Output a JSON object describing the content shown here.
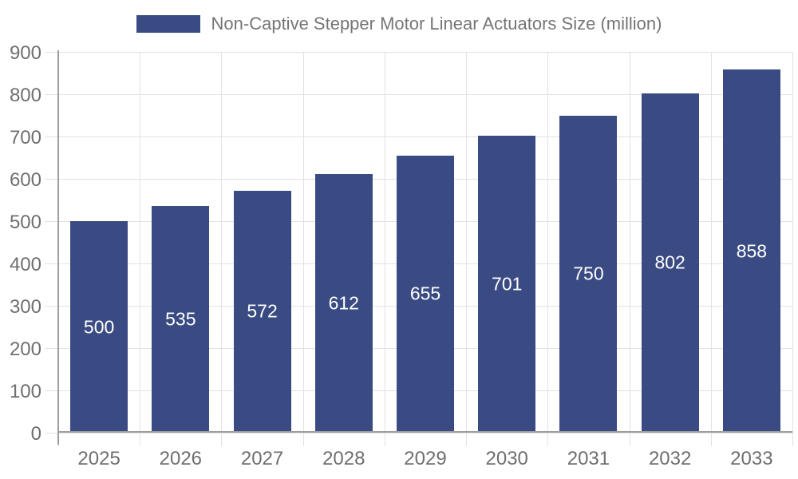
{
  "chart_data": {
    "type": "bar",
    "title": "Non-Captive Stepper Motor Linear Actuators Size (million)",
    "legend_label": "Non-Captive Stepper Motor Linear Actuators Size (million)",
    "legend_position": "top",
    "categories": [
      "2025",
      "2026",
      "2027",
      "2028",
      "2029",
      "2030",
      "2031",
      "2032",
      "2033"
    ],
    "values": [
      500,
      535,
      572,
      612,
      655,
      701,
      750,
      802,
      858
    ],
    "xlabel": "",
    "ylabel": "",
    "ylim": [
      0,
      900
    ],
    "ytick_step": 100,
    "ytick_labels": [
      "0",
      "100",
      "200",
      "300",
      "400",
      "500",
      "600",
      "700",
      "800",
      "900"
    ],
    "grid": true,
    "colors": {
      "bar": "#3a4b83",
      "grid": "#e2e2e2",
      "axis": "#9e9e9e",
      "tick_label": "#6f6f6f",
      "legend_text": "#757575",
      "value_label": "#ffffff",
      "background": "#ffffff"
    }
  }
}
